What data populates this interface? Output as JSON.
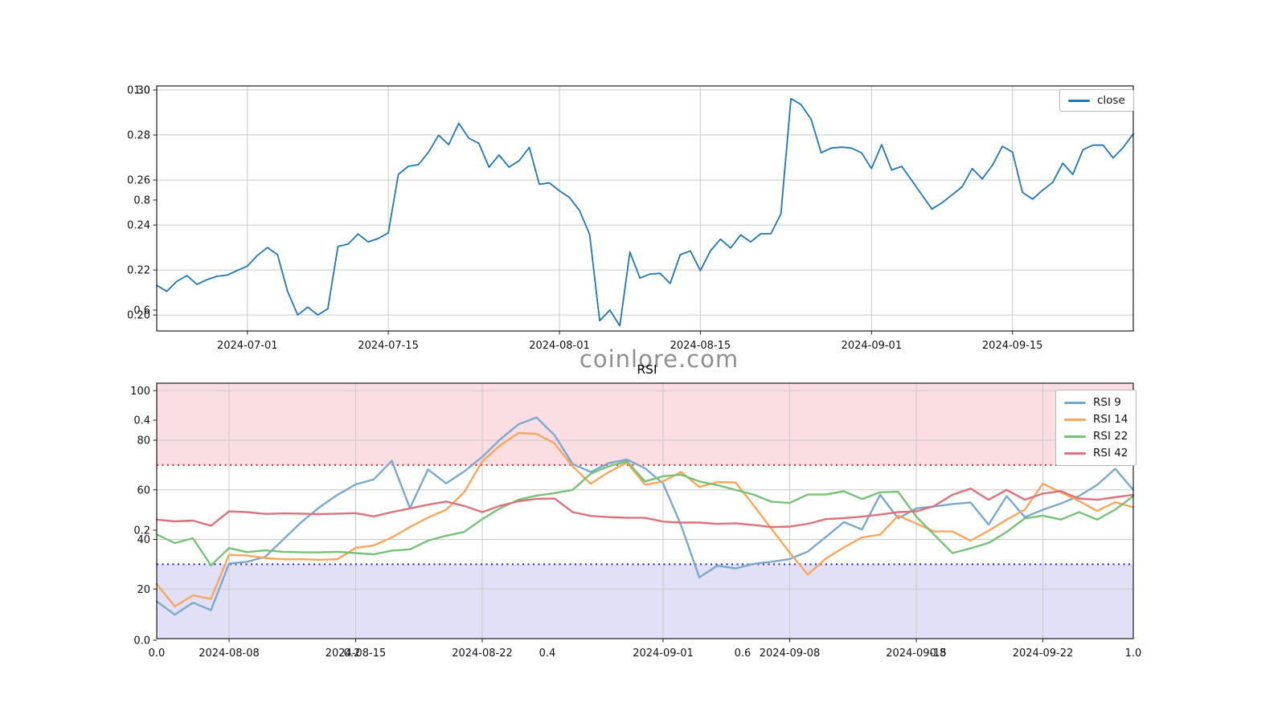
{
  "watermark": "coinlore.com",
  "overlay_axis": {
    "x_tick_labels": [
      "0.0",
      "0.2",
      "0.4",
      "0.6",
      "0.8",
      "1.0"
    ],
    "y_tick_labels": [
      "0.0",
      "0.2",
      "0.4",
      "0.6",
      "0.8",
      "1.0"
    ]
  },
  "chart_data": [
    {
      "type": "line",
      "title": "",
      "xlabel": "",
      "ylabel": "",
      "grid": true,
      "legend_position": "upper right",
      "ylim": [
        0.1929,
        0.3018
      ],
      "yticks": [
        0.2,
        0.22,
        0.24,
        0.26,
        0.28,
        0.3
      ],
      "ytick_labels": [
        "0.20",
        "0.22",
        "0.24",
        "0.26",
        "0.28",
        "0.30"
      ],
      "xtick_dates": [
        "2024-07-01",
        "2024-07-15",
        "2024-08-01",
        "2024-08-15",
        "2024-09-01",
        "2024-09-15"
      ],
      "x": [
        "2024-06-22",
        "2024-06-23",
        "2024-06-24",
        "2024-06-25",
        "2024-06-26",
        "2024-06-27",
        "2024-06-28",
        "2024-06-29",
        "2024-06-30",
        "2024-07-01",
        "2024-07-02",
        "2024-07-03",
        "2024-07-04",
        "2024-07-05",
        "2024-07-06",
        "2024-07-07",
        "2024-07-08",
        "2024-07-09",
        "2024-07-10",
        "2024-07-11",
        "2024-07-12",
        "2024-07-13",
        "2024-07-14",
        "2024-07-15",
        "2024-07-16",
        "2024-07-17",
        "2024-07-18",
        "2024-07-19",
        "2024-07-20",
        "2024-07-21",
        "2024-07-22",
        "2024-07-23",
        "2024-07-24",
        "2024-07-25",
        "2024-07-26",
        "2024-07-27",
        "2024-07-28",
        "2024-07-29",
        "2024-07-30",
        "2024-07-31",
        "2024-08-01",
        "2024-08-02",
        "2024-08-03",
        "2024-08-04",
        "2024-08-05",
        "2024-08-06",
        "2024-08-07",
        "2024-08-08",
        "2024-08-09",
        "2024-08-10",
        "2024-08-11",
        "2024-08-12",
        "2024-08-13",
        "2024-08-14",
        "2024-08-15",
        "2024-08-16",
        "2024-08-17",
        "2024-08-18",
        "2024-08-19",
        "2024-08-20",
        "2024-08-21",
        "2024-08-22",
        "2024-08-23",
        "2024-08-24",
        "2024-08-25",
        "2024-08-26",
        "2024-08-27",
        "2024-08-28",
        "2024-08-29",
        "2024-08-30",
        "2024-08-31",
        "2024-09-01",
        "2024-09-02",
        "2024-09-03",
        "2024-09-04",
        "2024-09-05",
        "2024-09-06",
        "2024-09-07",
        "2024-09-08",
        "2024-09-09",
        "2024-09-10",
        "2024-09-11",
        "2024-09-12",
        "2024-09-13",
        "2024-09-14",
        "2024-09-15",
        "2024-09-16",
        "2024-09-17",
        "2024-09-18",
        "2024-09-19",
        "2024-09-20",
        "2024-09-21",
        "2024-09-22",
        "2024-09-23",
        "2024-09-24",
        "2024-09-25",
        "2024-09-26",
        "2024-09-27"
      ],
      "series": [
        {
          "name": "close",
          "color": "#1f77b4",
          "values": [
            0.2132,
            0.2105,
            0.215,
            0.2175,
            0.2136,
            0.2157,
            0.2172,
            0.2177,
            0.2198,
            0.2217,
            0.2265,
            0.23,
            0.2268,
            0.2105,
            0.2,
            0.2035,
            0.2,
            0.2028,
            0.2305,
            0.2315,
            0.236,
            0.2325,
            0.234,
            0.2365,
            0.2625,
            0.2661,
            0.2668,
            0.2724,
            0.2799,
            0.2757,
            0.2852,
            0.2786,
            0.2763,
            0.2657,
            0.2711,
            0.2657,
            0.2686,
            0.2745,
            0.2581,
            0.2587,
            0.2552,
            0.2522,
            0.2464,
            0.2358,
            0.1974,
            0.2022,
            0.1952,
            0.228,
            0.2164,
            0.2182,
            0.2185,
            0.214,
            0.2268,
            0.2285,
            0.2197,
            0.2285,
            0.2337,
            0.2298,
            0.2356,
            0.2325,
            0.2361,
            0.2361,
            0.245,
            0.2962,
            0.2935,
            0.287,
            0.2721,
            0.2742,
            0.2746,
            0.2742,
            0.2721,
            0.2651,
            0.2757,
            0.2644,
            0.2661,
            0.2598,
            0.2534,
            0.2471,
            0.2499,
            0.2534,
            0.257,
            0.2651,
            0.2605,
            0.2665,
            0.275,
            0.2724,
            0.2545,
            0.2515,
            0.2555,
            0.259,
            0.2675,
            0.2625,
            0.2735,
            0.2755,
            0.2755,
            0.2698,
            0.2745,
            0.2805
          ]
        }
      ]
    },
    {
      "type": "line",
      "title": "RSI",
      "xlabel": "",
      "ylabel": "",
      "grid": true,
      "legend_position": "upper right",
      "ylim": [
        0,
        103
      ],
      "yticks": [
        20,
        40,
        60,
        80,
        100
      ],
      "ytick_labels": [
        "20",
        "40",
        "60",
        "80",
        "100"
      ],
      "xtick_dates": [
        "2024-08-08",
        "2024-08-15",
        "2024-08-22",
        "2024-09-01",
        "2024-09-08",
        "2024-09-15",
        "2024-09-22"
      ],
      "overbought_level": 70,
      "oversold_level": 30,
      "overbought_line_color": "#ed1c24",
      "oversold_line_color": "#2020cf",
      "overbought_band_color": "#fbdee2",
      "oversold_band_color": "#e1e0f7",
      "x": [
        "2024-08-04",
        "2024-08-05",
        "2024-08-06",
        "2024-08-07",
        "2024-08-08",
        "2024-08-09",
        "2024-08-10",
        "2024-08-11",
        "2024-08-12",
        "2024-08-13",
        "2024-08-14",
        "2024-08-15",
        "2024-08-16",
        "2024-08-17",
        "2024-08-18",
        "2024-08-19",
        "2024-08-20",
        "2024-08-21",
        "2024-08-22",
        "2024-08-23",
        "2024-08-24",
        "2024-08-25",
        "2024-08-26",
        "2024-08-27",
        "2024-08-28",
        "2024-08-29",
        "2024-08-30",
        "2024-08-31",
        "2024-09-01",
        "2024-09-02",
        "2024-09-03",
        "2024-09-04",
        "2024-09-05",
        "2024-09-06",
        "2024-09-07",
        "2024-09-08",
        "2024-09-09",
        "2024-09-10",
        "2024-09-11",
        "2024-09-12",
        "2024-09-13",
        "2024-09-14",
        "2024-09-15",
        "2024-09-16",
        "2024-09-17",
        "2024-09-18",
        "2024-09-19",
        "2024-09-20",
        "2024-09-21",
        "2024-09-22",
        "2024-09-23",
        "2024-09-24",
        "2024-09-25",
        "2024-09-26",
        "2024-09-27"
      ],
      "series": [
        {
          "name": "RSI 9",
          "color": "#7aa9d0",
          "values": [
            15,
            9.7,
            14.5,
            11.5,
            30.3,
            31,
            33,
            40,
            47,
            53,
            58,
            62.2,
            64.2,
            71.7,
            52.6,
            68.2,
            62.6,
            67.4,
            73.3,
            80.4,
            86.4,
            89.2,
            82,
            70.4,
            67.2,
            70.8,
            72.2,
            68.7,
            62.6,
            45.6,
            24.7,
            29.4,
            28.3,
            30.2,
            31,
            32.1,
            35.1,
            41,
            47,
            44,
            58,
            48.5,
            52.5,
            53.3,
            54.3,
            54.9,
            46,
            57.5,
            49,
            52,
            54.5,
            57.5,
            62,
            68.5,
            60
          ]
        },
        {
          "name": "RSI 14",
          "color": "#f9a65a",
          "values": [
            22,
            13,
            17.5,
            16,
            33.8,
            33.5,
            32.5,
            32,
            32,
            31.8,
            32,
            36.6,
            37.6,
            40.8,
            45,
            48.8,
            52,
            59,
            71.5,
            78,
            82.9,
            82.6,
            78.7,
            69.5,
            62.4,
            67.2,
            71,
            62.1,
            63.4,
            67.2,
            61.2,
            63.1,
            63,
            53.8,
            44.2,
            34.7,
            25.8,
            32.3,
            36.8,
            40.8,
            41.9,
            49.6,
            46.4,
            43.2,
            43.2,
            39.5,
            43.5,
            48,
            52,
            62.5,
            59,
            55.5,
            51.5,
            55,
            53
          ]
        },
        {
          "name": "RSI 22",
          "color": "#77c277",
          "values": [
            42,
            38.5,
            40.5,
            29.5,
            36.5,
            34.9,
            35.6,
            35,
            34.8,
            34.8,
            35,
            34.5,
            34,
            35.5,
            36,
            39.5,
            41.5,
            43,
            48.2,
            52.6,
            56,
            57.7,
            58.7,
            60,
            66.5,
            69.5,
            71.5,
            63.4,
            65.5,
            66.1,
            63.4,
            61.9,
            60,
            58.1,
            55.2,
            54.7,
            58.1,
            58.1,
            59.4,
            56.3,
            59,
            59.2,
            49.2,
            41.8,
            34.5,
            36.4,
            38.6,
            43,
            48.5,
            49.6,
            48,
            51,
            48,
            52,
            57.5
          ]
        },
        {
          "name": "RSI 42",
          "color": "#dd737a",
          "values": [
            48,
            47.3,
            47.6,
            45.5,
            51.3,
            51,
            50.3,
            50.5,
            50.4,
            50.2,
            50.4,
            50.6,
            49.3,
            51,
            52.5,
            54,
            55.3,
            53.5,
            51,
            53.6,
            55.4,
            56.4,
            56.5,
            51,
            49.5,
            49,
            48.7,
            48.7,
            47.2,
            46.8,
            46.8,
            46.3,
            46.5,
            45.8,
            45,
            45.2,
            46.3,
            48.2,
            48.6,
            49.2,
            50,
            51,
            51.3,
            53.5,
            58,
            60.5,
            56,
            60,
            56,
            58.5,
            59.5,
            56.5,
            56,
            57,
            58
          ]
        }
      ]
    }
  ]
}
